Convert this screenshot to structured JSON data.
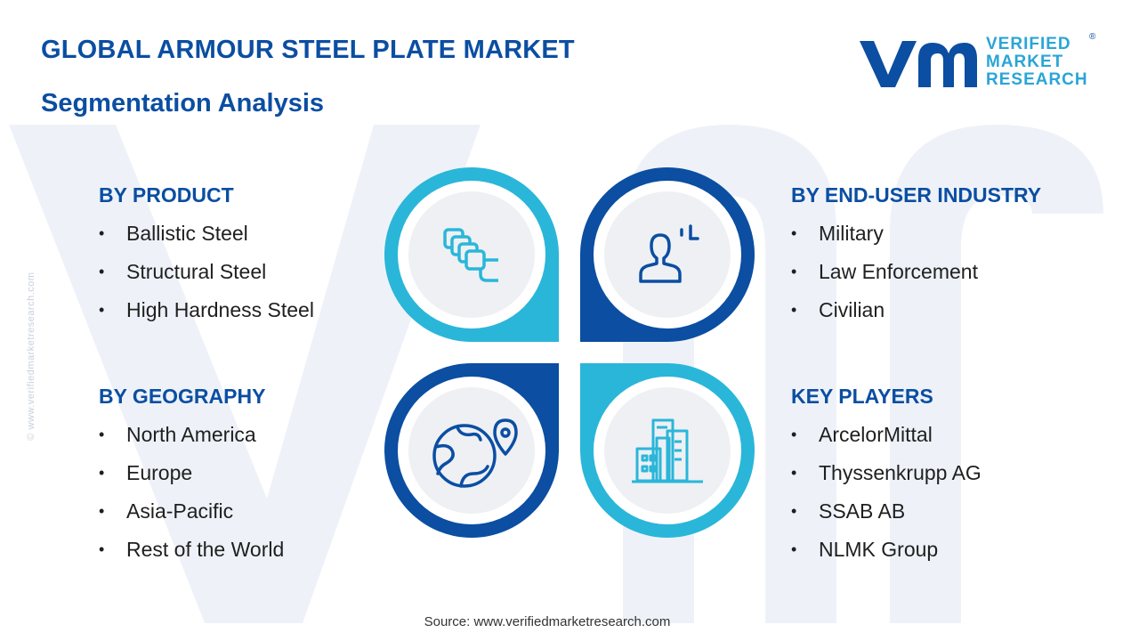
{
  "header": {
    "title": "GLOBAL ARMOUR STEEL PLATE MARKET",
    "subtitle": "Segmentation Analysis"
  },
  "logo": {
    "line1": "VERIFIED",
    "line2": "MARKET",
    "line3": "RESEARCH",
    "reg": "®"
  },
  "side_url": "© www.verifiedmarketresearch.com",
  "segments": {
    "product": {
      "title": "BY PRODUCT",
      "items": [
        "Ballistic Steel",
        "Structural Steel",
        "High Hardness Steel"
      ]
    },
    "end_user": {
      "title": "BY END-USER INDUSTRY",
      "items": [
        "Military",
        "Law Enforcement",
        "Civilian"
      ]
    },
    "geography": {
      "title": "BY GEOGRAPHY",
      "items": [
        "North America",
        "Europe",
        "Asia-Pacific",
        "Rest of the World"
      ]
    },
    "players": {
      "title": "KEY PLAYERS",
      "items": [
        "ArcelorMittal",
        "Thyssenkrupp AG",
        "SSAB AB",
        "NLMK Group"
      ]
    }
  },
  "bullet": "•",
  "icons": {
    "top_left": "layers-icon",
    "top_right": "user-profile-icon",
    "bottom_left": "globe-location-icon",
    "bottom_right": "city-buildings-icon"
  },
  "colors": {
    "dark_blue": "#0b4ea2",
    "light_blue": "#2ab6d9",
    "petal_inner": "#eef0f4"
  },
  "source": "Source: www.verifiedmarketresearch.com"
}
